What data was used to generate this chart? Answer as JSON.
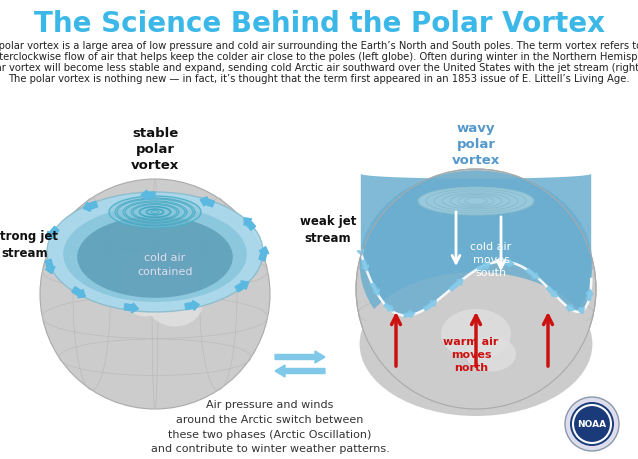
{
  "title": "The Science Behind the Polar Vortex",
  "title_color": "#3BB8E8",
  "title_fontsize": 20,
  "bg_color": "#FFFFFF",
  "body_text_lines": [
    "The polar vortex is a large area of low pressure and cold air surrounding the Earth’s North and South poles. The term vortex refers to the",
    "counterclockwise flow of air that helps keep the colder air close to the poles (left globe). Often during winter in the Northern Hemisphere,",
    "the polar vortex will become less stable and expand, sending cold Arctic air southward over the United States with the jet stream (right globe).",
    "The polar vortex is nothing new — in fact, it’s thought that the term first appeared in an 1853 issue of E. Littell’s Living Age."
  ],
  "body_fontsize": 7.2,
  "left_label_top": "stable\npolar\nvortex",
  "left_label_side": "strong jet\nstream",
  "left_label_center": "cold air\ncontained",
  "right_label_top": "wavy\npolar\nvortex",
  "right_label_side": "weak jet\nstream",
  "right_label_cold": "cold air\nmoves\nsouth",
  "right_label_warm": "warm air\nmoves\nnorth",
  "bottom_text": "Air pressure and winds\naround the Arctic switch between\nthese two phases (Arctic Oscillation)\nand contribute to winter weather patterns.",
  "globe_gray": "#CCCCCC",
  "globe_edge": "#AAAAAA",
  "grid_color": "#BBBBBB",
  "land_color": "#E0E0E0",
  "cap_blue_light": "#A8D8EC",
  "cap_blue_mid": "#7DC0D8",
  "cap_blue_dark": "#5B9BB4",
  "cap_blue_right": "#7ABCDA",
  "vortex_ring": "#4AAEC8",
  "arrow_blue": "#5BB8E0",
  "arrow_blue_light": "#80C8E8",
  "arrow_red": "#CC1111",
  "arrow_white": "#CCDDEE",
  "label_black": "#111111",
  "label_blue": "#5599CC",
  "label_red": "#CC1111",
  "label_white": "#FFFFFF",
  "noaa_dark": "#1A3A7A"
}
